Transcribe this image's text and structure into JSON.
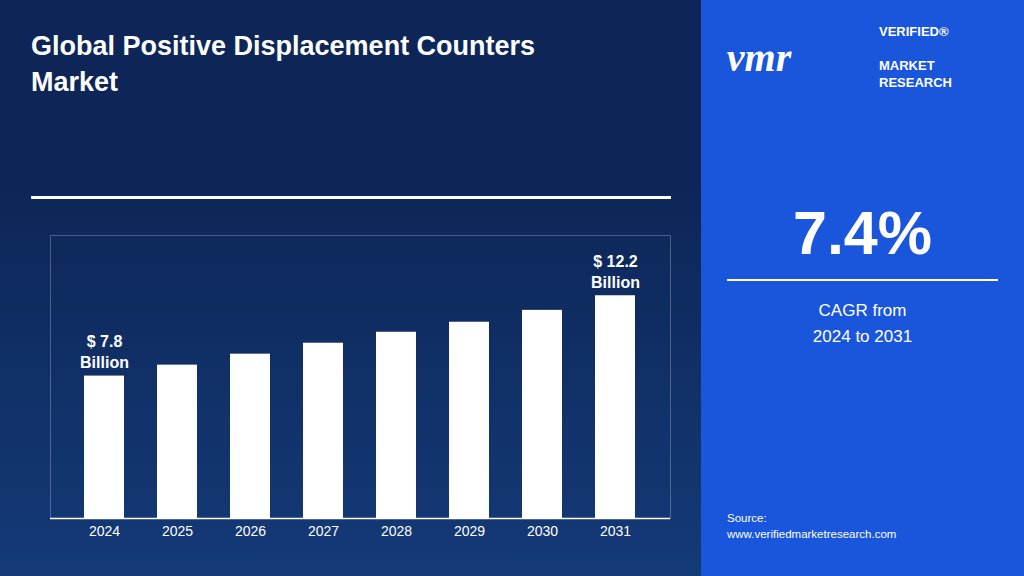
{
  "chart_data": {
    "type": "bar",
    "title": "Global Positive Displacement Counters\nMarket",
    "categories": [
      "2024",
      "2025",
      "2026",
      "2027",
      "2028",
      "2029",
      "2030",
      "2031"
    ],
    "values": [
      7.8,
      8.4,
      9.0,
      9.6,
      10.2,
      10.75,
      11.4,
      12.2
    ],
    "color": "#ffffff",
    "ylim": [
      0,
      15.5
    ],
    "tick_labels": "x",
    "grid": false,
    "annotations": [
      {
        "category": "2024",
        "text": "$ 7.8\nBillion"
      },
      {
        "category": "2031",
        "text": "$ 12.2\nBillion"
      },
      {
        "text": "vmr"
      },
      {
        "text": "VERIFIED®"
      },
      {
        "text": "MARKET\nRESEARCH"
      },
      {
        "text": "7.4%"
      },
      {
        "text": "CAGR from\n2024 to 2031"
      },
      {
        "text": "Source:\nwww.verifiedmarketresearch.com"
      }
    ]
  }
}
